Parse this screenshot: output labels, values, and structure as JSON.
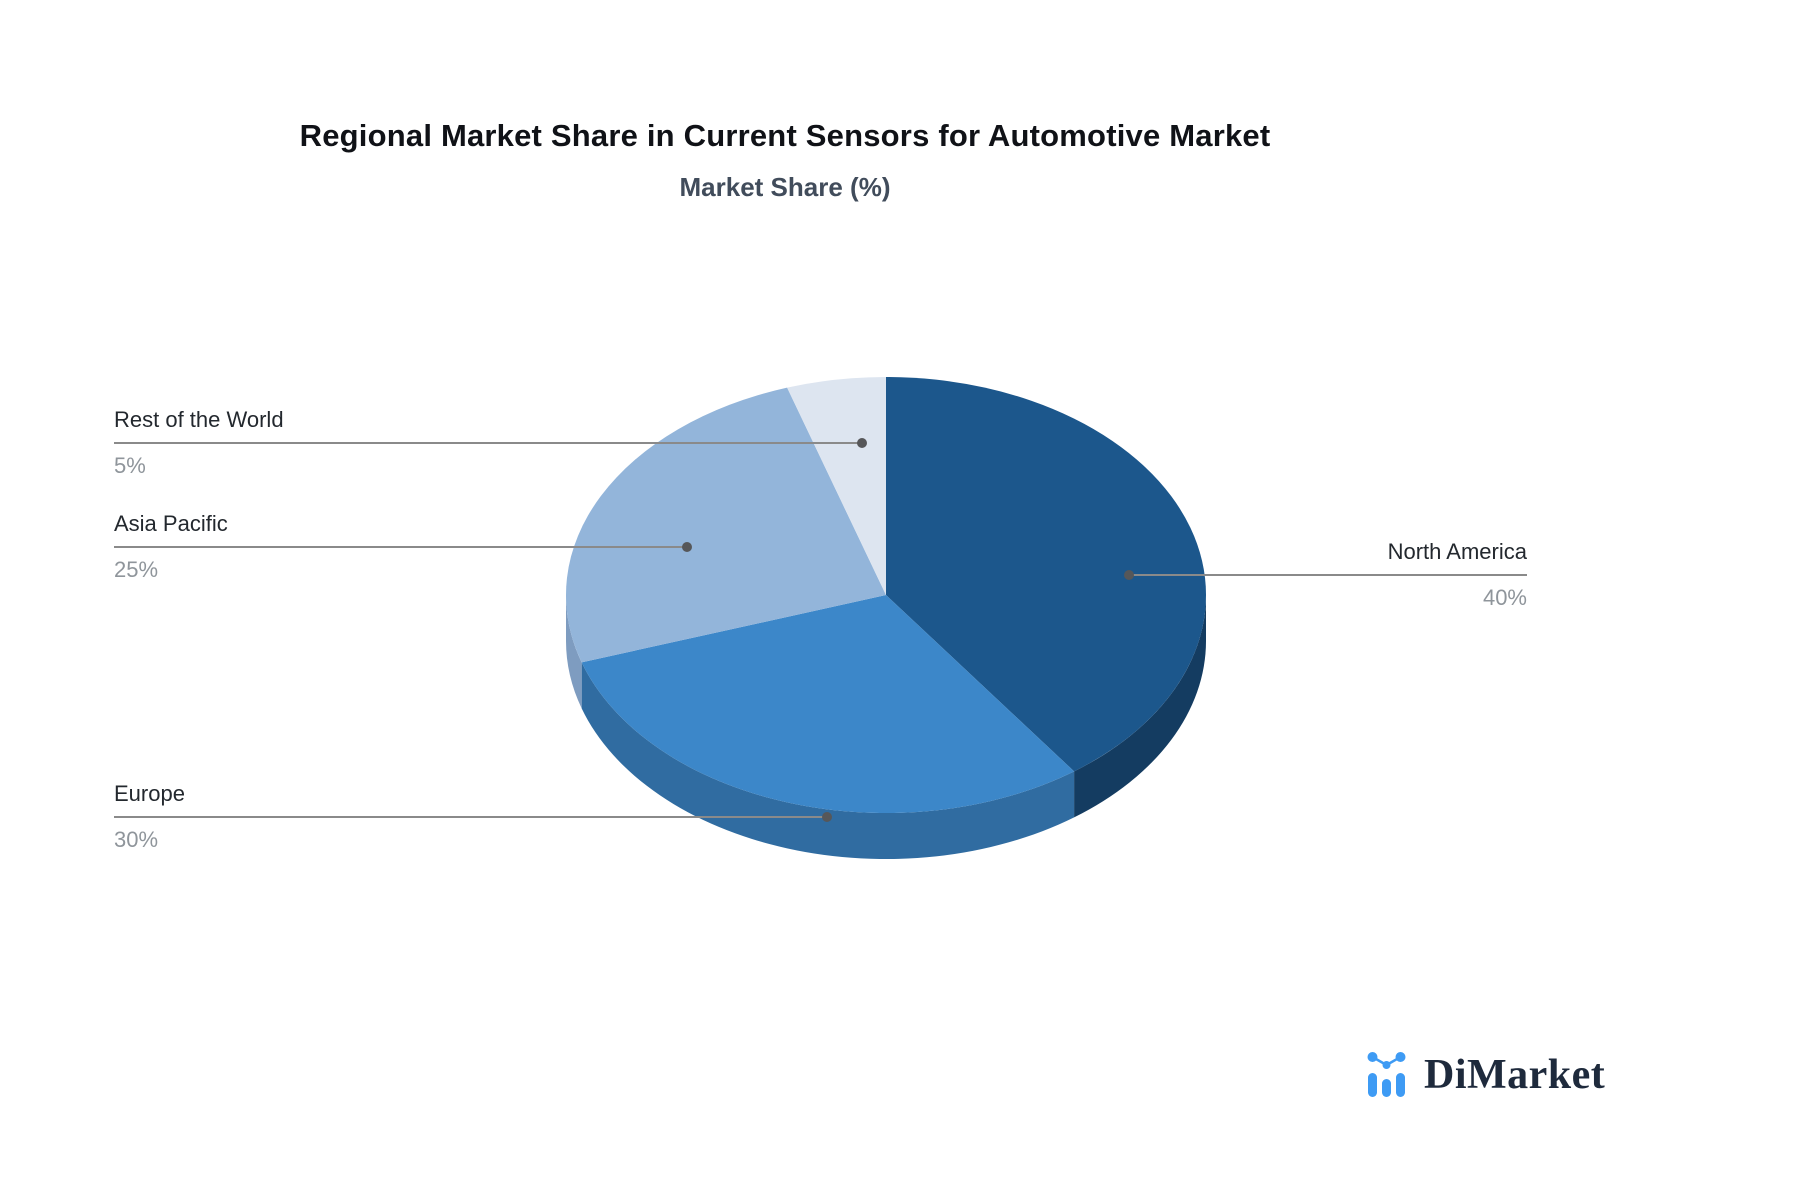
{
  "header": {
    "title": "Regional Market Share in Current Sensors for Automotive Market",
    "subtitle": "Market Share (%)"
  },
  "chart_data": {
    "type": "pie",
    "style": "3d",
    "title": "Regional Market Share in Current Sensors for Automotive Market",
    "value_label": "Market Share (%)",
    "unit": "%",
    "direction": "clockwise",
    "start_angle_deg": 0,
    "slices": [
      {
        "label": "North America",
        "value": 40,
        "value_text": "40%",
        "color": "#1c578c",
        "side_color": "#143c61"
      },
      {
        "label": "Europe",
        "value": 30,
        "value_text": "30%",
        "color": "#3c87c9",
        "side_color": "#306ca1"
      },
      {
        "label": "Asia Pacific",
        "value": 25,
        "value_text": "25%",
        "color": "#93b5da",
        "side_color": "#7e9cc0"
      },
      {
        "label": "Rest of the World",
        "value": 5,
        "value_text": "5%",
        "color": "#dde5f0",
        "side_color": "#bcc4d1"
      }
    ],
    "legend_position": "callout-labels",
    "leader_line_color": "#8a8a8a",
    "leader_dot_color": "#565759"
  },
  "branding": {
    "logo_text": "DiMarket",
    "logo_icon": "bar-line-chart-icon",
    "logo_icon_color": "#3e9bf4"
  }
}
